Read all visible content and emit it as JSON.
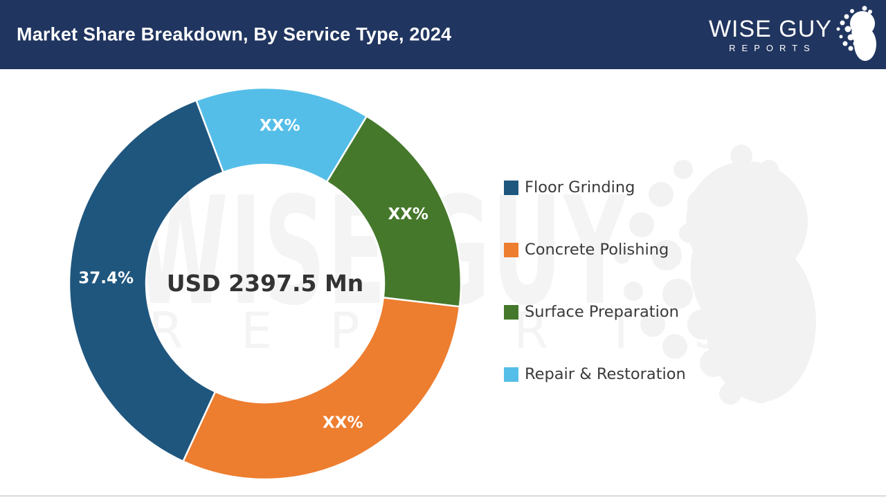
{
  "header": {
    "title": "Market Share Breakdown, By Service Type, 2024",
    "logo": {
      "line1": "WISE GUY",
      "line2": "REPORTS"
    }
  },
  "watermark": {
    "line1": "WISE GUY",
    "line2": "R E P O R T S"
  },
  "chart_data": {
    "type": "donut",
    "title": "Market Share Breakdown, By Service Type, 2024",
    "center_label": "USD 2397.5 Mn",
    "start_angle_deg": 339.4,
    "legend_position": "right",
    "slices": [
      {
        "name": "Repair & Restoration",
        "value": 14.4,
        "label": "XX%",
        "color": "#55BEE8"
      },
      {
        "name": "Surface Preparation",
        "value": 18.2,
        "label": "XX%",
        "color": "#45782B"
      },
      {
        "name": "Concrete Polishing",
        "value": 30.0,
        "label": "XX%",
        "color": "#ED7D2F"
      },
      {
        "name": "Floor Grinding",
        "value": 37.4,
        "label": "37.4%",
        "color": "#1F567E"
      }
    ],
    "legend": [
      {
        "label": "Floor Grinding",
        "color": "#1F567E"
      },
      {
        "label": "Concrete Polishing",
        "color": "#ED7D2F"
      },
      {
        "label": "Surface Preparation",
        "color": "#45782B"
      },
      {
        "label": "Repair & Restoration",
        "color": "#55BEE8"
      }
    ]
  }
}
